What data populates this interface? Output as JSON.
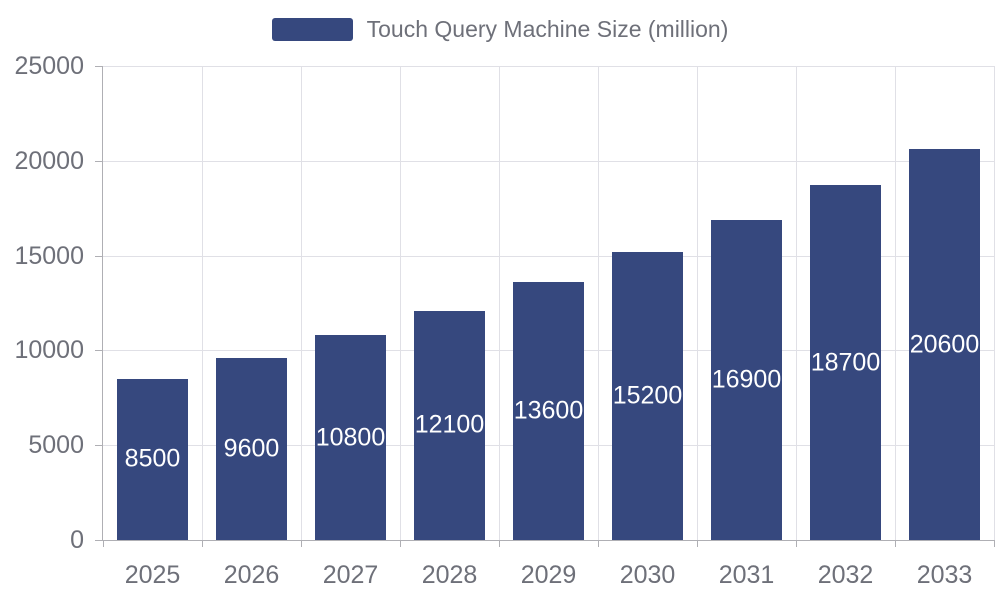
{
  "legend": {
    "label": "Touch Query Machine Size (million)"
  },
  "chart_data": {
    "type": "bar",
    "title": "Touch Query Machine Size (million)",
    "series_name": "Touch Query Machine Size (million)",
    "categories": [
      "2025",
      "2026",
      "2027",
      "2028",
      "2029",
      "2030",
      "2031",
      "2032",
      "2033"
    ],
    "values": [
      8500,
      9600,
      10800,
      12100,
      13600,
      15200,
      16900,
      18700,
      20600
    ],
    "xlabel": "",
    "ylabel": "",
    "ylim": [
      0,
      25000
    ],
    "yticks": [
      0,
      5000,
      10000,
      15000,
      20000,
      25000
    ],
    "grid": true,
    "legend_position": "top",
    "colors": {
      "bar": "#36487E",
      "value_label": "#FFFFFF",
      "axis_text": "#6E7079",
      "grid_line": "#E0E0E6",
      "axis_line": "#AFAFB4"
    }
  }
}
